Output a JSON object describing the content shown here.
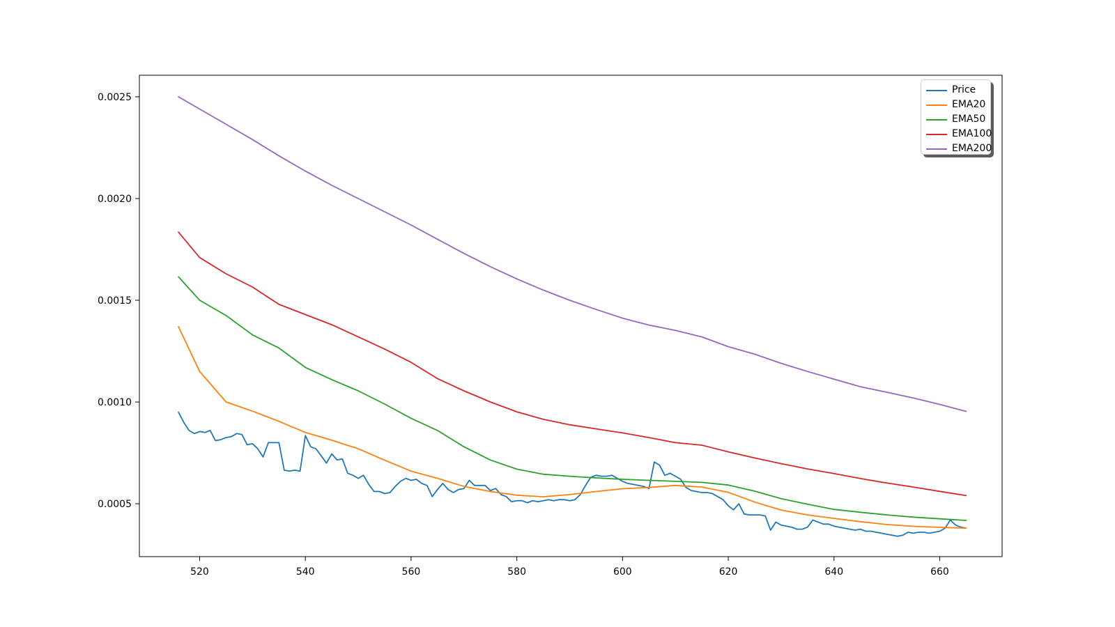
{
  "chart_data": {
    "type": "line",
    "title": "",
    "xlabel": "",
    "ylabel": "",
    "grid": false,
    "legend_position": "upper right",
    "xlim": [
      508.6,
      671.8
    ],
    "ylim": [
      0.00024,
      0.002606
    ],
    "xticks": [
      520,
      540,
      560,
      580,
      600,
      620,
      640,
      660
    ],
    "xtick_labels": [
      "520",
      "540",
      "560",
      "580",
      "600",
      "620",
      "640",
      "660"
    ],
    "yticks": [
      0.0005,
      0.001,
      0.0015,
      0.002,
      0.0025
    ],
    "ytick_labels": [
      "0.0005",
      "0.0010",
      "0.0015",
      "0.0020",
      "0.0025"
    ],
    "axis_color": "#000000",
    "series": [
      {
        "name": "Price",
        "color": "#1f77b4",
        "x0": 516,
        "dx": 1,
        "values": [
          0.00095,
          0.0009,
          0.00086,
          0.000845,
          0.000855,
          0.00085,
          0.00086,
          0.00081,
          0.000815,
          0.000825,
          0.00083,
          0.000845,
          0.00084,
          0.00079,
          0.000795,
          0.00077,
          0.00073,
          0.0008,
          0.0008,
          0.0008,
          0.000665,
          0.00066,
          0.000665,
          0.00066,
          0.000835,
          0.00078,
          0.00077,
          0.000735,
          0.0007,
          0.000745,
          0.000715,
          0.00072,
          0.00065,
          0.00064,
          0.000625,
          0.00064,
          0.000595,
          0.00056,
          0.00056,
          0.00055,
          0.000555,
          0.000585,
          0.00061,
          0.000625,
          0.000615,
          0.00062,
          0.0006,
          0.00059,
          0.000535,
          0.00057,
          0.0006,
          0.00057,
          0.000555,
          0.00057,
          0.000575,
          0.000615,
          0.00059,
          0.00059,
          0.00059,
          0.000565,
          0.000575,
          0.000545,
          0.000535,
          0.00051,
          0.000515,
          0.000515,
          0.000505,
          0.000515,
          0.00051,
          0.000515,
          0.00052,
          0.000515,
          0.00052,
          0.00052,
          0.000515,
          0.00052,
          0.000545,
          0.00059,
          0.00063,
          0.00064,
          0.000635,
          0.000635,
          0.00064,
          0.000625,
          0.00061,
          0.0006,
          0.000595,
          0.00059,
          0.000585,
          0.000575,
          0.000705,
          0.00069,
          0.00064,
          0.00065,
          0.000635,
          0.00062,
          0.00058,
          0.000565,
          0.00056,
          0.000555,
          0.000555,
          0.00055,
          0.000535,
          0.00052,
          0.00049,
          0.00047,
          0.0005,
          0.00045,
          0.000445,
          0.000445,
          0.000445,
          0.00044,
          0.00037,
          0.00041,
          0.000395,
          0.00039,
          0.000385,
          0.000375,
          0.000375,
          0.000385,
          0.00042,
          0.00041,
          0.0004,
          0.0004,
          0.00039,
          0.000385,
          0.00038,
          0.000375,
          0.00037,
          0.000375,
          0.000365,
          0.000365,
          0.00036,
          0.000355,
          0.00035,
          0.000345,
          0.00034,
          0.000345,
          0.00036,
          0.000355,
          0.00036,
          0.00036,
          0.000355,
          0.00036,
          0.000365,
          0.00038,
          0.00042,
          0.000395,
          0.000385,
          0.00038
        ]
      },
      {
        "name": "EMA20",
        "color": "#ff7f0e",
        "x": [
          516,
          520,
          525,
          530,
          535,
          540,
          545,
          550,
          555,
          560,
          565,
          570,
          575,
          580,
          585,
          590,
          595,
          600,
          605,
          610,
          615,
          620,
          625,
          630,
          635,
          640,
          645,
          650,
          655,
          660,
          665
        ],
        "values": [
          0.00137,
          0.00115,
          0.001,
          0.000955,
          0.000905,
          0.00085,
          0.000812,
          0.00077,
          0.000714,
          0.00066,
          0.000625,
          0.000585,
          0.00056,
          0.000542,
          0.000534,
          0.000545,
          0.00056,
          0.000574,
          0.00058,
          0.00059,
          0.000582,
          0.000556,
          0.000508,
          0.000469,
          0.000445,
          0.000428,
          0.000412,
          0.000398,
          0.000389,
          0.000384,
          0.00038
        ]
      },
      {
        "name": "EMA50",
        "color": "#2ca02c",
        "x": [
          516,
          520,
          525,
          530,
          535,
          540,
          545,
          550,
          555,
          560,
          565,
          570,
          575,
          580,
          585,
          590,
          595,
          600,
          605,
          610,
          615,
          620,
          625,
          630,
          635,
          640,
          645,
          650,
          655,
          660,
          665
        ],
        "values": [
          0.001615,
          0.0015,
          0.001425,
          0.00133,
          0.001265,
          0.00117,
          0.00111,
          0.001055,
          0.00099,
          0.00092,
          0.00086,
          0.00078,
          0.000715,
          0.00067,
          0.000645,
          0.000635,
          0.000627,
          0.00062,
          0.000615,
          0.00061,
          0.000605,
          0.000592,
          0.000562,
          0.000525,
          0.000498,
          0.000472,
          0.000458,
          0.000445,
          0.000434,
          0.000426,
          0.000418
        ]
      },
      {
        "name": "EMA100",
        "color": "#d62728",
        "x": [
          516,
          520,
          525,
          530,
          535,
          540,
          545,
          550,
          555,
          560,
          565,
          570,
          575,
          580,
          585,
          590,
          595,
          600,
          605,
          610,
          615,
          620,
          625,
          630,
          635,
          640,
          645,
          650,
          655,
          660,
          665
        ],
        "values": [
          0.001835,
          0.00171,
          0.00163,
          0.001565,
          0.00148,
          0.00143,
          0.00138,
          0.00132,
          0.00126,
          0.001195,
          0.001115,
          0.001055,
          0.001,
          0.000952,
          0.000915,
          0.000888,
          0.000868,
          0.000848,
          0.000825,
          0.0008,
          0.000788,
          0.000755,
          0.000725,
          0.000697,
          0.000671,
          0.000648,
          0.000624,
          0.000602,
          0.000582,
          0.000561,
          0.00054
        ]
      },
      {
        "name": "EMA200",
        "color": "#9467bd",
        "x": [
          516,
          520,
          525,
          530,
          535,
          540,
          545,
          550,
          555,
          560,
          565,
          570,
          575,
          580,
          585,
          590,
          595,
          600,
          605,
          610,
          615,
          620,
          625,
          630,
          635,
          640,
          645,
          650,
          655,
          660,
          665
        ],
        "values": [
          0.0025,
          0.00244,
          0.002365,
          0.00229,
          0.00221,
          0.002135,
          0.002065,
          0.002,
          0.001935,
          0.00187,
          0.0018,
          0.00173,
          0.001665,
          0.001605,
          0.00155,
          0.0015,
          0.001455,
          0.001412,
          0.001378,
          0.001352,
          0.00132,
          0.001272,
          0.001235,
          0.00119,
          0.00115,
          0.001112,
          0.001075,
          0.001048,
          0.00102,
          0.000988,
          0.000954
        ]
      }
    ]
  },
  "legend": {
    "entries": [
      {
        "label": "Price"
      },
      {
        "label": "EMA20"
      },
      {
        "label": "EMA50"
      },
      {
        "label": "EMA100"
      },
      {
        "label": "EMA200"
      }
    ]
  }
}
